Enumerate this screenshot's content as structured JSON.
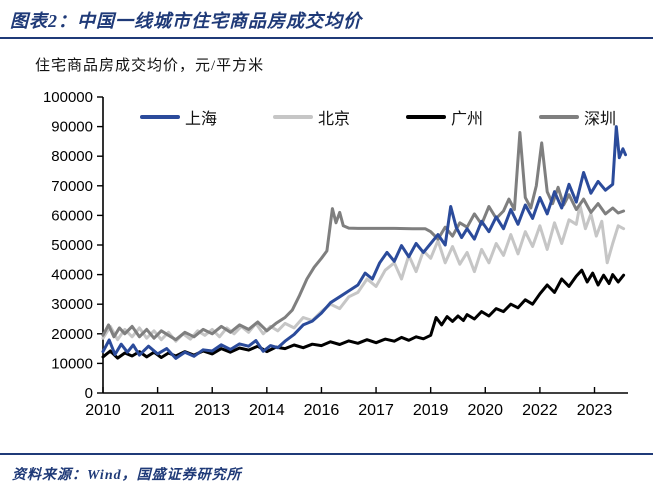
{
  "figure": {
    "title": "图表2：中国一线城市住宅商品房成交均价",
    "source": "资料来源：Wind，国盛证券研究所"
  },
  "chart_data": {
    "type": "line",
    "title": "中国一线城市住宅商品房成交均价",
    "unit_note": "住宅商品房成交均价，元/平方米",
    "xlabel": "",
    "ylabel": "元/平方米",
    "xlim": [
      2010,
      2024.42
    ],
    "ylim": [
      0,
      100000
    ],
    "grid": false,
    "legend_position": "top",
    "y_ticks": [
      0,
      10000,
      20000,
      30000,
      40000,
      50000,
      60000,
      70000,
      80000,
      90000,
      100000
    ],
    "x_ticks": [
      {
        "t": 2010.0,
        "label": "2010"
      },
      {
        "t": 2011.5,
        "label": "2011"
      },
      {
        "t": 2013.0,
        "label": "2013"
      },
      {
        "t": 2014.5,
        "label": "2014"
      },
      {
        "t": 2016.0,
        "label": "2016"
      },
      {
        "t": 2017.5,
        "label": "2017"
      },
      {
        "t": 2019.0,
        "label": "2019"
      },
      {
        "t": 2020.5,
        "label": "2020"
      },
      {
        "t": 2022.0,
        "label": "2022"
      },
      {
        "t": 2023.5,
        "label": "2023"
      }
    ],
    "series": [
      {
        "name": "上海",
        "color": "#2B4B9B",
        "points": [
          [
            2010.0,
            14000
          ],
          [
            2010.17,
            17900
          ],
          [
            2010.33,
            13000
          ],
          [
            2010.5,
            16500
          ],
          [
            2010.67,
            13800
          ],
          [
            2010.83,
            16200
          ],
          [
            2011.0,
            12800
          ],
          [
            2011.25,
            15800
          ],
          [
            2011.5,
            13200
          ],
          [
            2011.75,
            15000
          ],
          [
            2012.0,
            11700
          ],
          [
            2012.25,
            13800
          ],
          [
            2012.5,
            12400
          ],
          [
            2012.75,
            14600
          ],
          [
            2013.0,
            14200
          ],
          [
            2013.25,
            16300
          ],
          [
            2013.5,
            14700
          ],
          [
            2013.75,
            16600
          ],
          [
            2014.0,
            15800
          ],
          [
            2014.2,
            17700
          ],
          [
            2014.4,
            14100
          ],
          [
            2014.6,
            16000
          ],
          [
            2014.8,
            15300
          ],
          [
            2015.0,
            17500
          ],
          [
            2015.25,
            19800
          ],
          [
            2015.5,
            23000
          ],
          [
            2015.75,
            24300
          ],
          [
            2016.0,
            27000
          ],
          [
            2016.25,
            30500
          ],
          [
            2016.5,
            32500
          ],
          [
            2016.75,
            34500
          ],
          [
            2017.0,
            36500
          ],
          [
            2017.2,
            40500
          ],
          [
            2017.4,
            38500
          ],
          [
            2017.6,
            44000
          ],
          [
            2017.8,
            47500
          ],
          [
            2018.0,
            44500
          ],
          [
            2018.2,
            49800
          ],
          [
            2018.4,
            46000
          ],
          [
            2018.6,
            50500
          ],
          [
            2018.8,
            47500
          ],
          [
            2019.0,
            50500
          ],
          [
            2019.2,
            53500
          ],
          [
            2019.4,
            50000
          ],
          [
            2019.55,
            63000
          ],
          [
            2019.7,
            56000
          ],
          [
            2019.85,
            52500
          ],
          [
            2020.0,
            55500
          ],
          [
            2020.2,
            52000
          ],
          [
            2020.4,
            58000
          ],
          [
            2020.6,
            54500
          ],
          [
            2020.8,
            59500
          ],
          [
            2021.0,
            55500
          ],
          [
            2021.2,
            62000
          ],
          [
            2021.4,
            57000
          ],
          [
            2021.6,
            63500
          ],
          [
            2021.8,
            59000
          ],
          [
            2022.0,
            66000
          ],
          [
            2022.2,
            60500
          ],
          [
            2022.4,
            68000
          ],
          [
            2022.6,
            62500
          ],
          [
            2022.8,
            70500
          ],
          [
            2023.0,
            64500
          ],
          [
            2023.2,
            74500
          ],
          [
            2023.4,
            67500
          ],
          [
            2023.6,
            71500
          ],
          [
            2023.8,
            68500
          ],
          [
            2024.0,
            70500
          ],
          [
            2024.1,
            90000
          ],
          [
            2024.18,
            79500
          ],
          [
            2024.28,
            82500
          ],
          [
            2024.35,
            80500
          ]
        ]
      },
      {
        "name": "北京",
        "color": "#C6C6C6",
        "points": [
          [
            2010.0,
            18500
          ],
          [
            2010.2,
            22500
          ],
          [
            2010.4,
            18000
          ],
          [
            2010.6,
            21500
          ],
          [
            2010.8,
            19000
          ],
          [
            2011.0,
            22000
          ],
          [
            2011.2,
            18500
          ],
          [
            2011.4,
            21000
          ],
          [
            2011.6,
            18000
          ],
          [
            2011.8,
            20500
          ],
          [
            2012.0,
            17500
          ],
          [
            2012.2,
            20000
          ],
          [
            2012.4,
            18200
          ],
          [
            2012.6,
            21000
          ],
          [
            2012.8,
            19500
          ],
          [
            2013.0,
            21500
          ],
          [
            2013.2,
            19000
          ],
          [
            2013.4,
            22000
          ],
          [
            2013.6,
            20000
          ],
          [
            2013.8,
            22500
          ],
          [
            2014.0,
            20500
          ],
          [
            2014.2,
            23500
          ],
          [
            2014.4,
            20000
          ],
          [
            2014.6,
            22500
          ],
          [
            2014.8,
            21000
          ],
          [
            2015.0,
            23500
          ],
          [
            2015.25,
            22000
          ],
          [
            2015.5,
            25500
          ],
          [
            2015.75,
            24500
          ],
          [
            2016.0,
            27500
          ],
          [
            2016.25,
            30000
          ],
          [
            2016.5,
            28500
          ],
          [
            2016.75,
            32500
          ],
          [
            2017.0,
            34000
          ],
          [
            2017.25,
            38500
          ],
          [
            2017.5,
            36000
          ],
          [
            2017.75,
            41500
          ],
          [
            2018.0,
            44000
          ],
          [
            2018.2,
            38500
          ],
          [
            2018.4,
            46500
          ],
          [
            2018.6,
            41000
          ],
          [
            2018.8,
            48000
          ],
          [
            2019.0,
            45500
          ],
          [
            2019.2,
            51500
          ],
          [
            2019.4,
            44000
          ],
          [
            2019.6,
            49500
          ],
          [
            2019.8,
            43500
          ],
          [
            2020.0,
            47500
          ],
          [
            2020.2,
            41000
          ],
          [
            2020.4,
            48500
          ],
          [
            2020.6,
            44000
          ],
          [
            2020.8,
            50500
          ],
          [
            2021.0,
            46500
          ],
          [
            2021.2,
            53500
          ],
          [
            2021.4,
            47000
          ],
          [
            2021.6,
            54500
          ],
          [
            2021.8,
            49500
          ],
          [
            2022.0,
            56500
          ],
          [
            2022.2,
            48500
          ],
          [
            2022.4,
            57500
          ],
          [
            2022.6,
            50500
          ],
          [
            2022.8,
            58500
          ],
          [
            2023.0,
            57000
          ],
          [
            2023.1,
            63500
          ],
          [
            2023.25,
            55500
          ],
          [
            2023.4,
            60500
          ],
          [
            2023.55,
            53000
          ],
          [
            2023.7,
            58000
          ],
          [
            2023.85,
            44000
          ],
          [
            2024.0,
            50500
          ],
          [
            2024.15,
            56500
          ],
          [
            2024.3,
            55500
          ]
        ]
      },
      {
        "name": "广州",
        "color": "#000000",
        "points": [
          [
            2010.0,
            12200
          ],
          [
            2010.2,
            14200
          ],
          [
            2010.4,
            11800
          ],
          [
            2010.6,
            13500
          ],
          [
            2010.8,
            12500
          ],
          [
            2011.0,
            14000
          ],
          [
            2011.2,
            12200
          ],
          [
            2011.4,
            13800
          ],
          [
            2011.6,
            12000
          ],
          [
            2011.8,
            13500
          ],
          [
            2012.0,
            12500
          ],
          [
            2012.25,
            14000
          ],
          [
            2012.5,
            12800
          ],
          [
            2012.75,
            14200
          ],
          [
            2013.0,
            13200
          ],
          [
            2013.25,
            15000
          ],
          [
            2013.5,
            13800
          ],
          [
            2013.75,
            15200
          ],
          [
            2014.0,
            14500
          ],
          [
            2014.25,
            15800
          ],
          [
            2014.5,
            14000
          ],
          [
            2014.75,
            15500
          ],
          [
            2015.0,
            15000
          ],
          [
            2015.25,
            16200
          ],
          [
            2015.5,
            15300
          ],
          [
            2015.75,
            16500
          ],
          [
            2016.0,
            16000
          ],
          [
            2016.25,
            17300
          ],
          [
            2016.5,
            16400
          ],
          [
            2016.75,
            17600
          ],
          [
            2017.0,
            16800
          ],
          [
            2017.25,
            18000
          ],
          [
            2017.5,
            17000
          ],
          [
            2017.75,
            18200
          ],
          [
            2018.0,
            17500
          ],
          [
            2018.2,
            18800
          ],
          [
            2018.4,
            17800
          ],
          [
            2018.6,
            19000
          ],
          [
            2018.8,
            18300
          ],
          [
            2019.0,
            19500
          ],
          [
            2019.15,
            25500
          ],
          [
            2019.3,
            23000
          ],
          [
            2019.45,
            25800
          ],
          [
            2019.6,
            24200
          ],
          [
            2019.75,
            26000
          ],
          [
            2019.9,
            24500
          ],
          [
            2020.0,
            26500
          ],
          [
            2020.2,
            25000
          ],
          [
            2020.4,
            27500
          ],
          [
            2020.6,
            26000
          ],
          [
            2020.8,
            28500
          ],
          [
            2021.0,
            27500
          ],
          [
            2021.2,
            30000
          ],
          [
            2021.4,
            28800
          ],
          [
            2021.6,
            31500
          ],
          [
            2021.8,
            30000
          ],
          [
            2022.0,
            33500
          ],
          [
            2022.2,
            36500
          ],
          [
            2022.4,
            34000
          ],
          [
            2022.6,
            38500
          ],
          [
            2022.8,
            36000
          ],
          [
            2023.0,
            39500
          ],
          [
            2023.15,
            41500
          ],
          [
            2023.3,
            37500
          ],
          [
            2023.45,
            40500
          ],
          [
            2023.6,
            36500
          ],
          [
            2023.75,
            39800
          ],
          [
            2023.9,
            37000
          ],
          [
            2024.0,
            40000
          ],
          [
            2024.15,
            37500
          ],
          [
            2024.3,
            39800
          ]
        ]
      },
      {
        "name": "深圳",
        "color": "#7F7F7F",
        "points": [
          [
            2010.0,
            19500
          ],
          [
            2010.15,
            23000
          ],
          [
            2010.3,
            19000
          ],
          [
            2010.45,
            22000
          ],
          [
            2010.6,
            20000
          ],
          [
            2010.8,
            22500
          ],
          [
            2011.0,
            19000
          ],
          [
            2011.2,
            21500
          ],
          [
            2011.4,
            18500
          ],
          [
            2011.6,
            21000
          ],
          [
            2011.8,
            19500
          ],
          [
            2012.0,
            18000
          ],
          [
            2012.25,
            20500
          ],
          [
            2012.5,
            19000
          ],
          [
            2012.75,
            21500
          ],
          [
            2013.0,
            20000
          ],
          [
            2013.25,
            22500
          ],
          [
            2013.5,
            20500
          ],
          [
            2013.75,
            23000
          ],
          [
            2014.0,
            21500
          ],
          [
            2014.25,
            24000
          ],
          [
            2014.5,
            21000
          ],
          [
            2014.75,
            23500
          ],
          [
            2015.0,
            25500
          ],
          [
            2015.2,
            28000
          ],
          [
            2015.4,
            33000
          ],
          [
            2015.6,
            38500
          ],
          [
            2015.8,
            42500
          ],
          [
            2016.0,
            45500
          ],
          [
            2016.15,
            48000
          ],
          [
            2016.3,
            62300
          ],
          [
            2016.4,
            57500
          ],
          [
            2016.5,
            61000
          ],
          [
            2016.6,
            56500
          ],
          [
            2016.75,
            55700
          ],
          [
            2017.0,
            55600
          ],
          [
            2017.5,
            55600
          ],
          [
            2018.0,
            55600
          ],
          [
            2018.5,
            55500
          ],
          [
            2018.85,
            55500
          ],
          [
            2019.0,
            54500
          ],
          [
            2019.2,
            52000
          ],
          [
            2019.4,
            56000
          ],
          [
            2019.6,
            53000
          ],
          [
            2019.8,
            57500
          ],
          [
            2020.0,
            56000
          ],
          [
            2020.2,
            60500
          ],
          [
            2020.4,
            57000
          ],
          [
            2020.6,
            63000
          ],
          [
            2020.8,
            59000
          ],
          [
            2021.0,
            61500
          ],
          [
            2021.15,
            65500
          ],
          [
            2021.3,
            62000
          ],
          [
            2021.45,
            88000
          ],
          [
            2021.6,
            66000
          ],
          [
            2021.75,
            62500
          ],
          [
            2021.9,
            70000
          ],
          [
            2022.05,
            84500
          ],
          [
            2022.2,
            68000
          ],
          [
            2022.35,
            64000
          ],
          [
            2022.5,
            69500
          ],
          [
            2022.65,
            63500
          ],
          [
            2022.8,
            67000
          ],
          [
            2023.0,
            62000
          ],
          [
            2023.2,
            65500
          ],
          [
            2023.4,
            61000
          ],
          [
            2023.6,
            64000
          ],
          [
            2023.8,
            60500
          ],
          [
            2024.0,
            62500
          ],
          [
            2024.15,
            60800
          ],
          [
            2024.3,
            61500
          ]
        ]
      }
    ]
  }
}
